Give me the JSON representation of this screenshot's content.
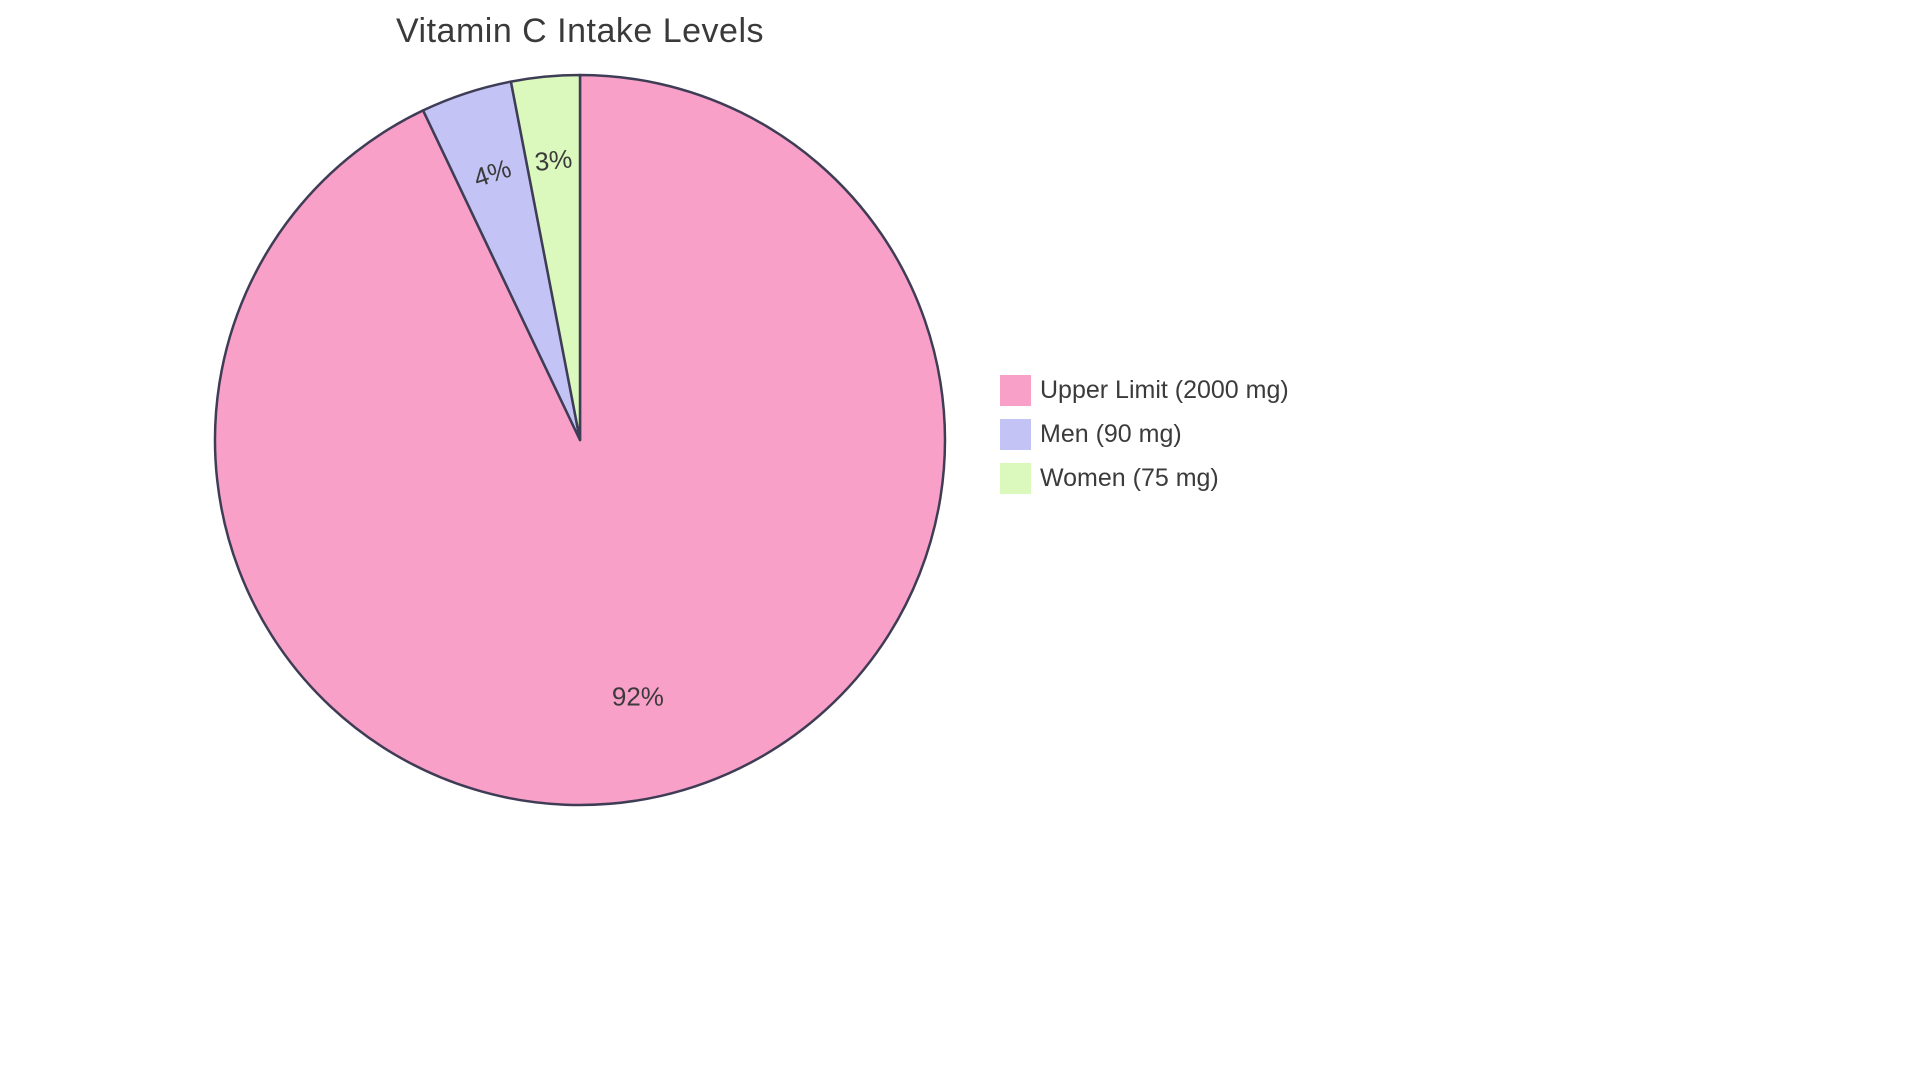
{
  "chart_data": {
    "type": "pie",
    "title": "Vitamin C Intake Levels",
    "labels": [
      "Upper Limit (2000 mg)",
      "Men (90 mg)",
      "Women (75 mg)"
    ],
    "values": [
      92,
      4,
      3
    ],
    "value_labels": [
      "92%",
      "4%",
      "3%"
    ],
    "colors": [
      "#F9A0C9",
      "#C4C3F5",
      "#DBF9BD"
    ],
    "stroke_color": "#3F3D56",
    "legend_position": "right",
    "start_angle_deg": 0,
    "direction": "clockwise"
  }
}
